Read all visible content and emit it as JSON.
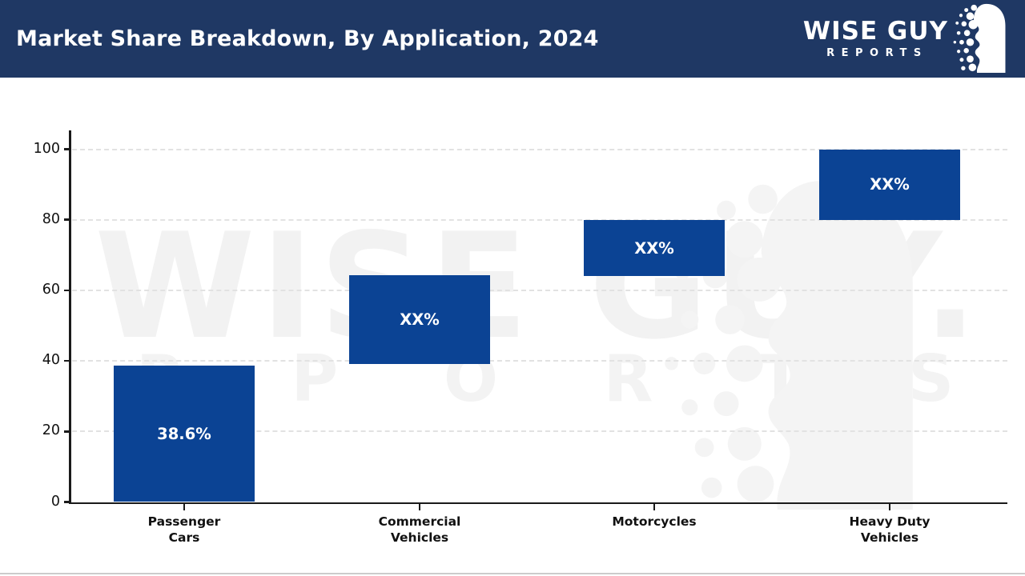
{
  "header": {
    "title": "Market Share Breakdown, By Application, 2024",
    "bg_color": "#1f3864",
    "logo": {
      "line1": "WISE GUY",
      "line2": "REPORTS"
    }
  },
  "watermark": {
    "line1": "WISE GUY.",
    "line2": "R  P O R T S"
  },
  "chart_data": {
    "type": "bar",
    "subtype": "floating-waterfall",
    "title": "Market Share Breakdown, By Application, 2024",
    "xlabel": "",
    "ylabel": "",
    "categories": [
      "Passenger Cars",
      "Commercial Vehicles",
      "Motorcycles",
      "Heavy Duty Vehicles"
    ],
    "segments": [
      {
        "category": "Passenger Cars",
        "start": 0,
        "end": 38.6,
        "label": "38.6%"
      },
      {
        "category": "Commercial Vehicles",
        "start": 39,
        "end": 64.3,
        "label": "XX%"
      },
      {
        "category": "Motorcycles",
        "start": 64,
        "end": 79.9,
        "label": "XX%"
      },
      {
        "category": "Heavy Duty Vehicles",
        "start": 80,
        "end": 99.9,
        "label": "XX%"
      }
    ],
    "ylim": [
      0,
      100
    ],
    "yticks": [
      0,
      20,
      40,
      60,
      80,
      100
    ],
    "grid": true,
    "legend": "none",
    "bar_color": "#0b4394",
    "bar_label_color": "#ffffff"
  }
}
